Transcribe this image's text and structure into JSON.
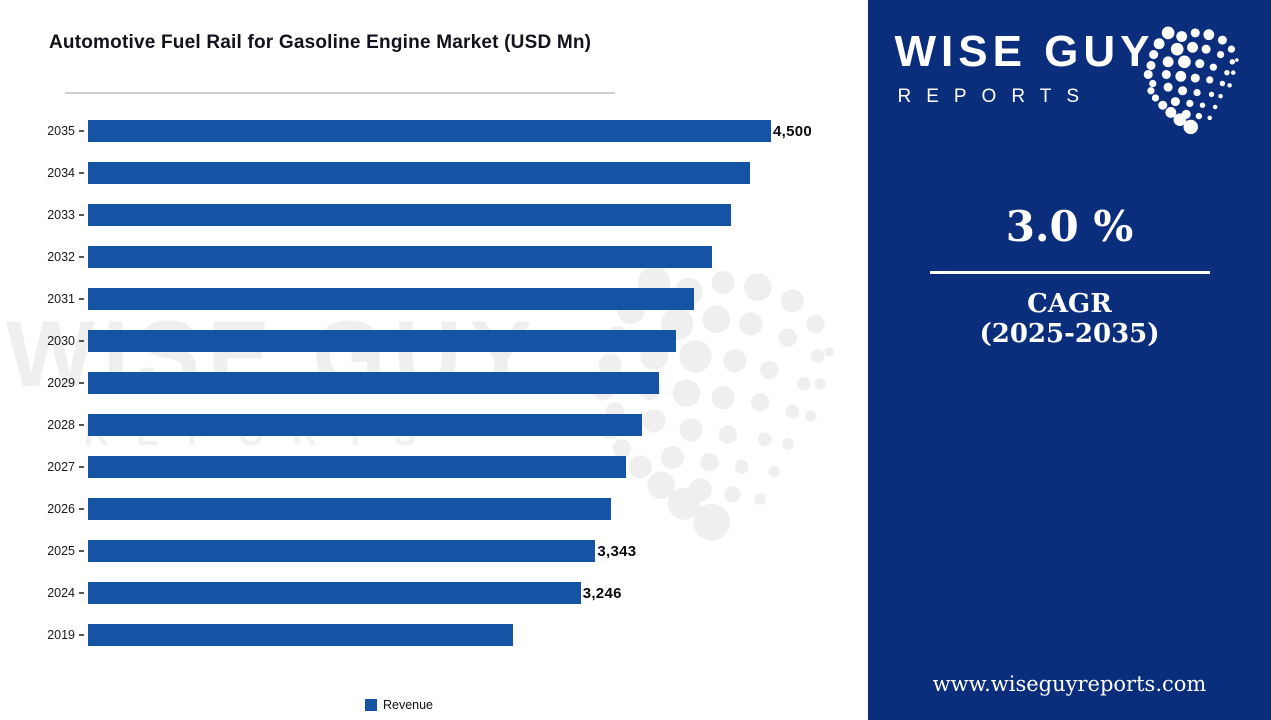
{
  "title": "Automotive Fuel Rail for Gasoline Engine Market (USD Mn)",
  "legend": {
    "revenue_label": "Revenue"
  },
  "watermark": {
    "line1": "WISE GUY",
    "line2": "REPORTS"
  },
  "panel": {
    "logo_line1": "WISE GUY",
    "logo_line2": "REPORTS",
    "cagr_value": "3.0 %",
    "cagr_label_line1": "CAGR",
    "cagr_label_line2": "(2025-2035)",
    "website": "www.wiseguyreports.com"
  },
  "colors": {
    "bar": "#1553a4",
    "panel_bg": "#0a2d7c",
    "watermark": "#efefef"
  },
  "chart_data": {
    "type": "bar",
    "orientation": "horizontal",
    "title": "Automotive Fuel Rail for Gasoline Engine Market (USD Mn)",
    "xlabel": "",
    "ylabel": "",
    "xlim": [
      0,
      4500
    ],
    "grid": false,
    "legend_position": "bottom",
    "legend_entries": [
      "Revenue"
    ],
    "categories": [
      "2035",
      "2034",
      "2033",
      "2032",
      "2031",
      "2030",
      "2029",
      "2028",
      "2027",
      "2026",
      "2025",
      "2024",
      "2019"
    ],
    "values": [
      4500,
      4361,
      4234,
      4111,
      3991,
      3875,
      3762,
      3652,
      3546,
      3443,
      3343,
      3246,
      2800
    ],
    "value_labels": [
      "4,500",
      null,
      null,
      null,
      null,
      null,
      null,
      null,
      null,
      null,
      "3,343",
      "3,246",
      null
    ],
    "series_name": "Revenue"
  }
}
